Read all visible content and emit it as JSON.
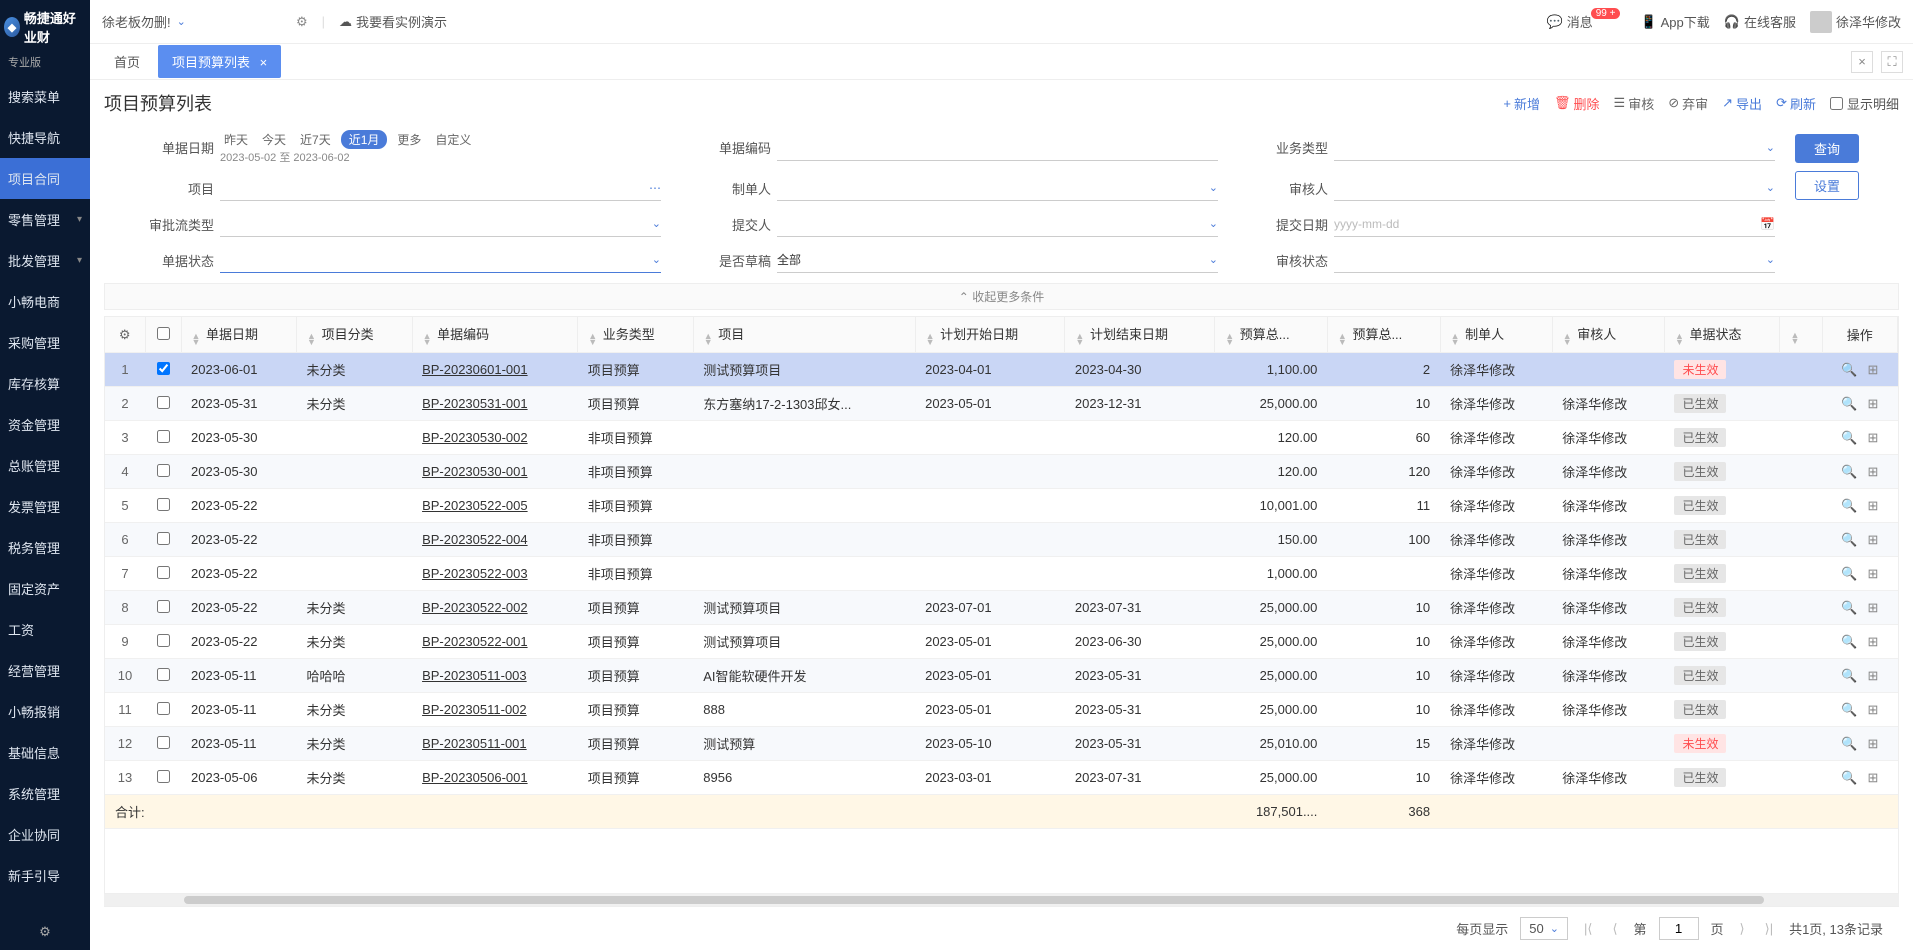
{
  "brand": {
    "name": "畅捷通好业财",
    "edition": "专业版"
  },
  "sidebar": {
    "items": [
      {
        "label": "搜索菜单"
      },
      {
        "label": "快捷导航"
      },
      {
        "label": "项目合同",
        "active": true
      },
      {
        "label": "零售管理",
        "expand": true
      },
      {
        "label": "批发管理",
        "expand": true
      },
      {
        "label": "小畅电商"
      },
      {
        "label": "采购管理"
      },
      {
        "label": "库存核算"
      },
      {
        "label": "资金管理"
      },
      {
        "label": "总账管理"
      },
      {
        "label": "发票管理"
      },
      {
        "label": "税务管理"
      },
      {
        "label": "固定资产"
      },
      {
        "label": "工资"
      },
      {
        "label": "经营管理"
      },
      {
        "label": "小畅报销"
      },
      {
        "label": "基础信息"
      },
      {
        "label": "系统管理"
      },
      {
        "label": "企业协同"
      },
      {
        "label": "新手引导"
      }
    ]
  },
  "topbar": {
    "org": "徐老板勿删!",
    "demo": "我要看实例演示",
    "message": "消息",
    "message_badge": "99 +",
    "download": "App下载",
    "service": "在线客服",
    "user": "徐泽华修改"
  },
  "tabs": {
    "home": "首页",
    "current": "项目预算列表"
  },
  "page": {
    "title": "项目预算列表",
    "toolbar": {
      "add": "新增",
      "delete": "删除",
      "audit": "审核",
      "abandon": "弃审",
      "export": "导出",
      "refresh": "刷新",
      "detail": "显示明细"
    },
    "search": {
      "labels": {
        "bill_date": "单据日期",
        "bill_code": "单据编码",
        "biz_type": "业务类型",
        "project": "项目",
        "maker": "制单人",
        "auditor": "审核人",
        "flow_type": "审批流类型",
        "submitter": "提交人",
        "submit_date": "提交日期",
        "bill_status": "单据状态",
        "is_draft": "是否草稿",
        "audit_status": "审核状态"
      },
      "date_chips": [
        "昨天",
        "今天",
        "近7天",
        "近1月",
        "更多",
        "自定义"
      ],
      "date_active": "近1月",
      "date_range": "2023-05-02 至 2023-06-02",
      "draft_value": "全部",
      "date_placeholder": "yyyy-mm-dd",
      "btn_search": "查询",
      "btn_config": "设置",
      "collapse": "收起更多条件"
    },
    "table": {
      "columns": [
        "单据日期",
        "项目分类",
        "单据编码",
        "业务类型",
        "项目",
        "计划开始日期",
        "计划结束日期",
        "预算总...",
        "预算总...",
        "制单人",
        "审核人",
        "单据状态"
      ],
      "ops_header": "操作",
      "rows": [
        {
          "n": 1,
          "date": "2023-06-01",
          "cat": "未分类",
          "code": "BP-20230601-001",
          "biz": "项目预算",
          "proj": "测试预算项目",
          "start": "2023-04-01",
          "end": "2023-04-30",
          "amt1": "1,100.00",
          "amt2": "2",
          "maker": "徐泽华修改",
          "auditor": "",
          "status": "未生效",
          "selected": true
        },
        {
          "n": 2,
          "date": "2023-05-31",
          "cat": "未分类",
          "code": "BP-20230531-001",
          "biz": "项目预算",
          "proj": "东方塞纳17-2-1303邱女...",
          "start": "2023-05-01",
          "end": "2023-12-31",
          "amt1": "25,000.00",
          "amt2": "10",
          "maker": "徐泽华修改",
          "auditor": "徐泽华修改",
          "status": "已生效"
        },
        {
          "n": 3,
          "date": "2023-05-30",
          "cat": "",
          "code": "BP-20230530-002",
          "biz": "非项目预算",
          "proj": "",
          "start": "",
          "end": "",
          "amt1": "120.00",
          "amt2": "60",
          "maker": "徐泽华修改",
          "auditor": "徐泽华修改",
          "status": "已生效"
        },
        {
          "n": 4,
          "date": "2023-05-30",
          "cat": "",
          "code": "BP-20230530-001",
          "biz": "非项目预算",
          "proj": "",
          "start": "",
          "end": "",
          "amt1": "120.00",
          "amt2": "120",
          "maker": "徐泽华修改",
          "auditor": "徐泽华修改",
          "status": "已生效"
        },
        {
          "n": 5,
          "date": "2023-05-22",
          "cat": "",
          "code": "BP-20230522-005",
          "biz": "非项目预算",
          "proj": "",
          "start": "",
          "end": "",
          "amt1": "10,001.00",
          "amt2": "11",
          "maker": "徐泽华修改",
          "auditor": "徐泽华修改",
          "status": "已生效"
        },
        {
          "n": 6,
          "date": "2023-05-22",
          "cat": "",
          "code": "BP-20230522-004",
          "biz": "非项目预算",
          "proj": "",
          "start": "",
          "end": "",
          "amt1": "150.00",
          "amt2": "100",
          "maker": "徐泽华修改",
          "auditor": "徐泽华修改",
          "status": "已生效"
        },
        {
          "n": 7,
          "date": "2023-05-22",
          "cat": "",
          "code": "BP-20230522-003",
          "biz": "非项目预算",
          "proj": "",
          "start": "",
          "end": "",
          "amt1": "1,000.00",
          "amt2": "",
          "maker": "徐泽华修改",
          "auditor": "徐泽华修改",
          "status": "已生效"
        },
        {
          "n": 8,
          "date": "2023-05-22",
          "cat": "未分类",
          "code": "BP-20230522-002",
          "biz": "项目预算",
          "proj": "测试预算项目",
          "start": "2023-07-01",
          "end": "2023-07-31",
          "amt1": "25,000.00",
          "amt2": "10",
          "maker": "徐泽华修改",
          "auditor": "徐泽华修改",
          "status": "已生效"
        },
        {
          "n": 9,
          "date": "2023-05-22",
          "cat": "未分类",
          "code": "BP-20230522-001",
          "biz": "项目预算",
          "proj": "测试预算项目",
          "start": "2023-05-01",
          "end": "2023-06-30",
          "amt1": "25,000.00",
          "amt2": "10",
          "maker": "徐泽华修改",
          "auditor": "徐泽华修改",
          "status": "已生效"
        },
        {
          "n": 10,
          "date": "2023-05-11",
          "cat": "哈哈哈",
          "code": "BP-20230511-003",
          "biz": "项目预算",
          "proj": "AI智能软硬件开发",
          "start": "2023-05-01",
          "end": "2023-05-31",
          "amt1": "25,000.00",
          "amt2": "10",
          "maker": "徐泽华修改",
          "auditor": "徐泽华修改",
          "status": "已生效"
        },
        {
          "n": 11,
          "date": "2023-05-11",
          "cat": "未分类",
          "code": "BP-20230511-002",
          "biz": "项目预算",
          "proj": "888",
          "start": "2023-05-01",
          "end": "2023-05-31",
          "amt1": "25,000.00",
          "amt2": "10",
          "maker": "徐泽华修改",
          "auditor": "徐泽华修改",
          "status": "已生效"
        },
        {
          "n": 12,
          "date": "2023-05-11",
          "cat": "未分类",
          "code": "BP-20230511-001",
          "biz": "项目预算",
          "proj": "测试预算",
          "start": "2023-05-10",
          "end": "2023-05-31",
          "amt1": "25,010.00",
          "amt2": "15",
          "maker": "徐泽华修改",
          "auditor": "",
          "status": "未生效"
        },
        {
          "n": 13,
          "date": "2023-05-06",
          "cat": "未分类",
          "code": "BP-20230506-001",
          "biz": "项目预算",
          "proj": "8956",
          "start": "2023-03-01",
          "end": "2023-07-31",
          "amt1": "25,000.00",
          "amt2": "10",
          "maker": "徐泽华修改",
          "auditor": "徐泽华修改",
          "status": "已生效"
        }
      ],
      "footer": {
        "label": "合计:",
        "amt1": "187,501....",
        "amt2": "368"
      }
    },
    "pagination": {
      "per_page_label": "每页显示",
      "per_page": "50",
      "page_prefix": "第",
      "page": "1",
      "page_suffix": "页",
      "summary": "共1页, 13条记录"
    }
  }
}
